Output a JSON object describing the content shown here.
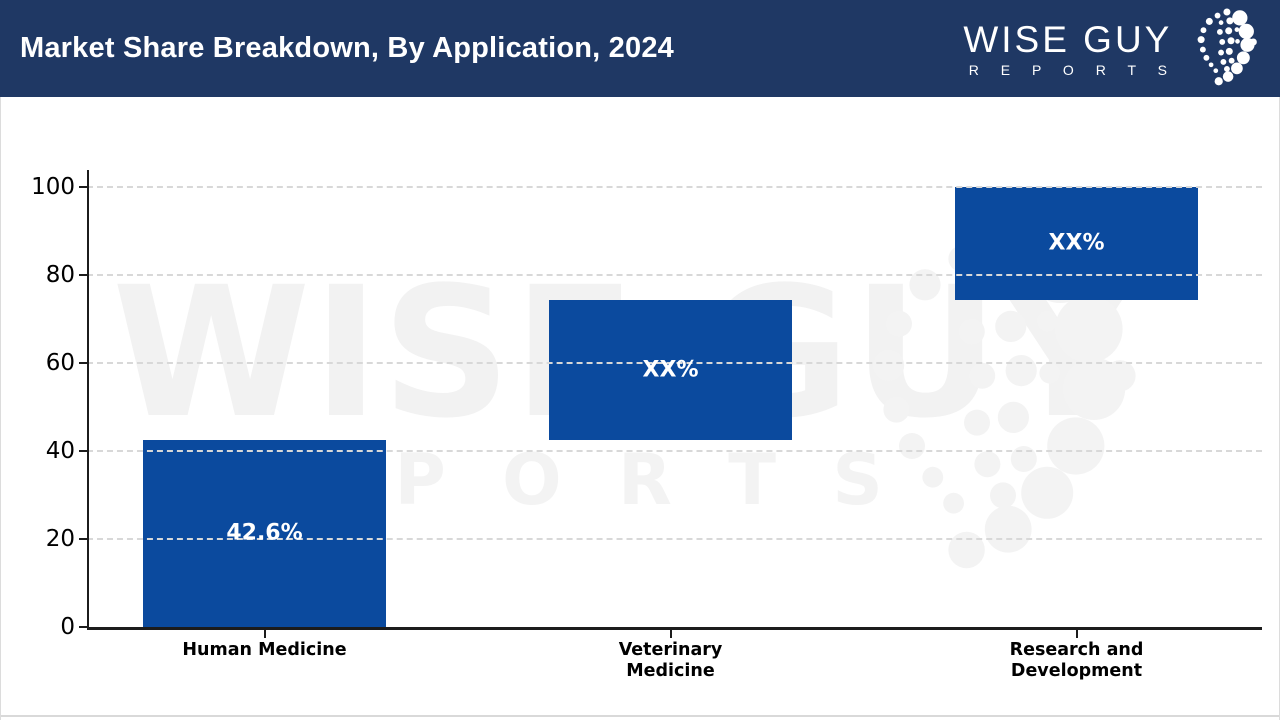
{
  "header": {
    "title": "Market Share Breakdown, By Application, 2024",
    "bg_color": "#1f3864",
    "logo": {
      "wordmark": "WISE GUY",
      "subtext": "R E P O R T S",
      "head_icon": "dotted-head-profile-icon"
    }
  },
  "watermark": {
    "wordmark": "WISE GUY",
    "subtext": "R E P O R T S",
    "color": "#f2f2f2"
  },
  "chart_data": {
    "type": "bar",
    "subtype": "waterfall-stacked-segments",
    "title": "Market Share Breakdown, By Application, 2024",
    "categories": [
      "Human Medicine",
      "Veterinary\nMedicine",
      "Research and\nDevelopment"
    ],
    "segments": [
      {
        "category": "Human Medicine",
        "start": 0,
        "end": 42.6,
        "label": "42.6%"
      },
      {
        "category": "Veterinary Medicine",
        "start": 42.6,
        "end": 74.4,
        "label": "XX%"
      },
      {
        "category": "Research and Development",
        "start": 74.4,
        "end": 100,
        "label": "XX%"
      }
    ],
    "xlabel": "",
    "ylabel": "",
    "ylim": [
      0,
      100
    ],
    "yticks": [
      0,
      20,
      40,
      60,
      80,
      100
    ],
    "grid": "dashed-horizontal-over-bars",
    "legend": "none",
    "bar_color": "#0b4a9e",
    "bar_label_color": "#ffffff",
    "axis_color": "#1c1c1c",
    "grid_color": "#d8d8d8"
  }
}
